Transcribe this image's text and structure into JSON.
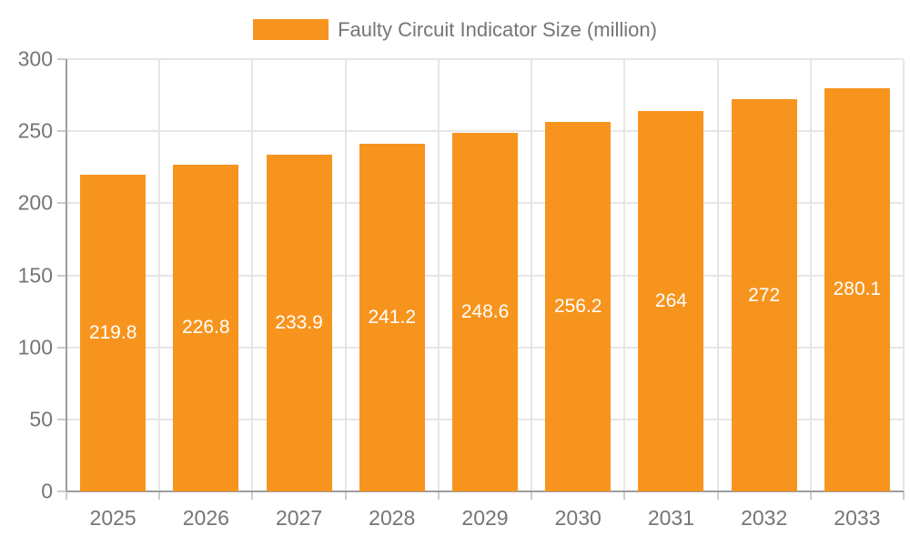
{
  "chart_data": {
    "type": "bar",
    "title": "Faulty Circuit Indicator Size (million)",
    "legend_entries": [
      "Faulty Circuit Indicator Size (million)"
    ],
    "legend_position": "top",
    "categories": [
      "2025",
      "2026",
      "2027",
      "2028",
      "2029",
      "2030",
      "2031",
      "2032",
      "2033"
    ],
    "series": [
      {
        "name": "Faulty Circuit Indicator Size (million)",
        "values": [
          219.8,
          226.8,
          233.9,
          241.2,
          248.6,
          256.2,
          264,
          272,
          280.1
        ]
      }
    ],
    "value_labels": [
      "219.8",
      "226.8",
      "233.9",
      "241.2",
      "248.6",
      "256.2",
      "264",
      "272",
      "280.1"
    ],
    "xlabel": "",
    "ylabel": "",
    "ylim": [
      0,
      300
    ],
    "y_ticks": [
      0,
      50,
      100,
      150,
      200,
      250,
      300
    ],
    "grid": true,
    "colors": {
      "bar": "#F7941E",
      "bar_label": "#FFFFFF",
      "axis_text": "#757575",
      "gridline": "#E6E6E6",
      "axis_line": "#9E9E9E",
      "tick": "#CCCCCC",
      "background": "#FFFFFF"
    }
  }
}
